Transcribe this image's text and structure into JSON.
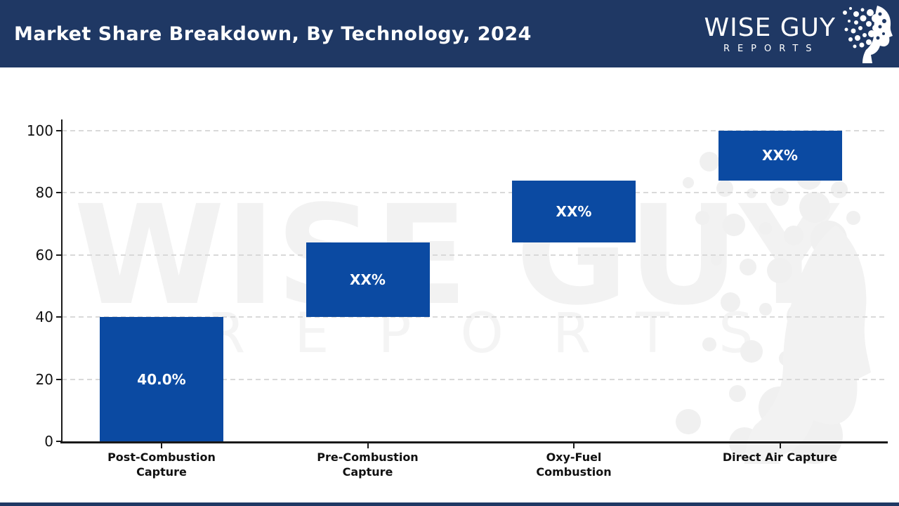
{
  "header": {
    "title": "Market Share Breakdown, By Technology, 2024",
    "logo": {
      "name": "WISE GUY",
      "tagline": "REPORTS"
    }
  },
  "watermark": {
    "name": "WISE GUY",
    "tagline": "REPORTS"
  },
  "chart_data": {
    "type": "bar",
    "subtype": "waterfall",
    "title": "Market Share Breakdown, By Technology, 2024",
    "categories": [
      "Post-Combustion Capture",
      "Pre-Combustion Capture",
      "Oxy-Fuel Combustion",
      "Direct Air Capture"
    ],
    "category_lines": [
      [
        "Post-Combustion",
        "Capture"
      ],
      [
        "Pre-Combustion",
        "Capture"
      ],
      [
        "Oxy-Fuel",
        "Combustion"
      ],
      [
        "Direct Air Capture"
      ]
    ],
    "bars": [
      {
        "category": "Post-Combustion Capture",
        "start": 0,
        "end": 40,
        "increment": 40,
        "label": "40.0%"
      },
      {
        "category": "Pre-Combustion Capture",
        "start": 40,
        "end": 64,
        "increment": 24,
        "label": "XX%"
      },
      {
        "category": "Oxy-Fuel Combustion",
        "start": 64,
        "end": 84,
        "increment": 20,
        "label": "XX%"
      },
      {
        "category": "Direct Air Capture",
        "start": 84,
        "end": 100,
        "increment": 16,
        "label": "XX%"
      }
    ],
    "xlabel": "",
    "ylabel": "",
    "ylim": [
      0,
      100
    ],
    "yticks": [
      0,
      20,
      40,
      60,
      80,
      100
    ],
    "grid": "horizontal-dashed",
    "legend": "none",
    "bar_color": "#0b4aa2",
    "value_label_color": "#ffffff"
  },
  "colors": {
    "header_bg": "#1f3864",
    "footer_bg": "#1f3864",
    "bar": "#0b4aa2",
    "gridline": "#d9d9d9",
    "axis": "#1a1a1a",
    "watermark": "#f2f2f2"
  }
}
